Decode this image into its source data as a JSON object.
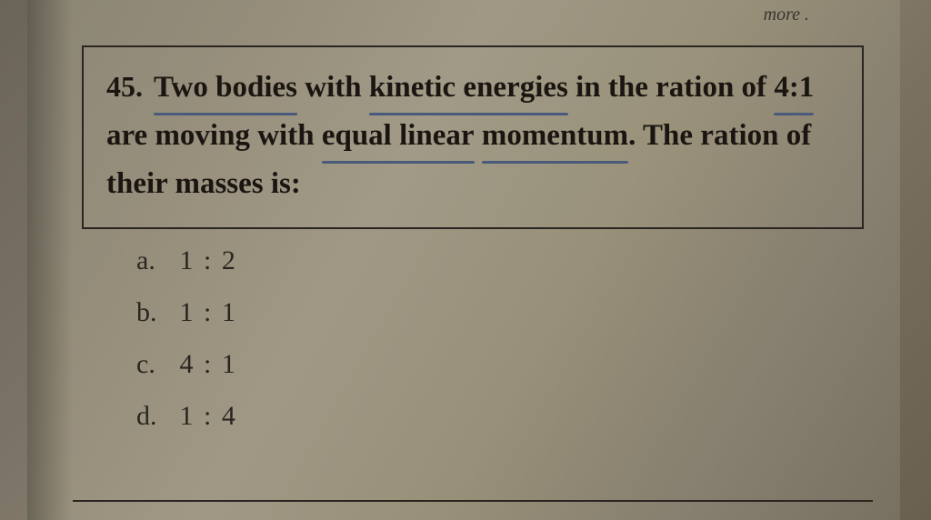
{
  "annotation": "more .",
  "question": {
    "number": "45.",
    "text_parts": {
      "prefix": "",
      "underlined1": "Two bodies",
      "mid1": " with ",
      "underlined2": "kinetic energies",
      "mid2": " in the ration of ",
      "underlined3": "4:1",
      "mid3": " are moving with ",
      "underlined4": "equal linear",
      "mid4": " ",
      "underlined5": "momentum",
      "suffix": ". The ration of their masses is:"
    }
  },
  "options": [
    {
      "label": "a.",
      "value": "1 : 2"
    },
    {
      "label": "b.",
      "value": "1 : 1"
    },
    {
      "label": "c.",
      "value": "4 : 1"
    },
    {
      "label": "d.",
      "value": "1 : 4"
    }
  ],
  "colors": {
    "text": "#1a1510",
    "underline": "#4a5a7a",
    "border": "#2a2520",
    "paper_light": "#a09885",
    "paper_dark": "#787060"
  }
}
